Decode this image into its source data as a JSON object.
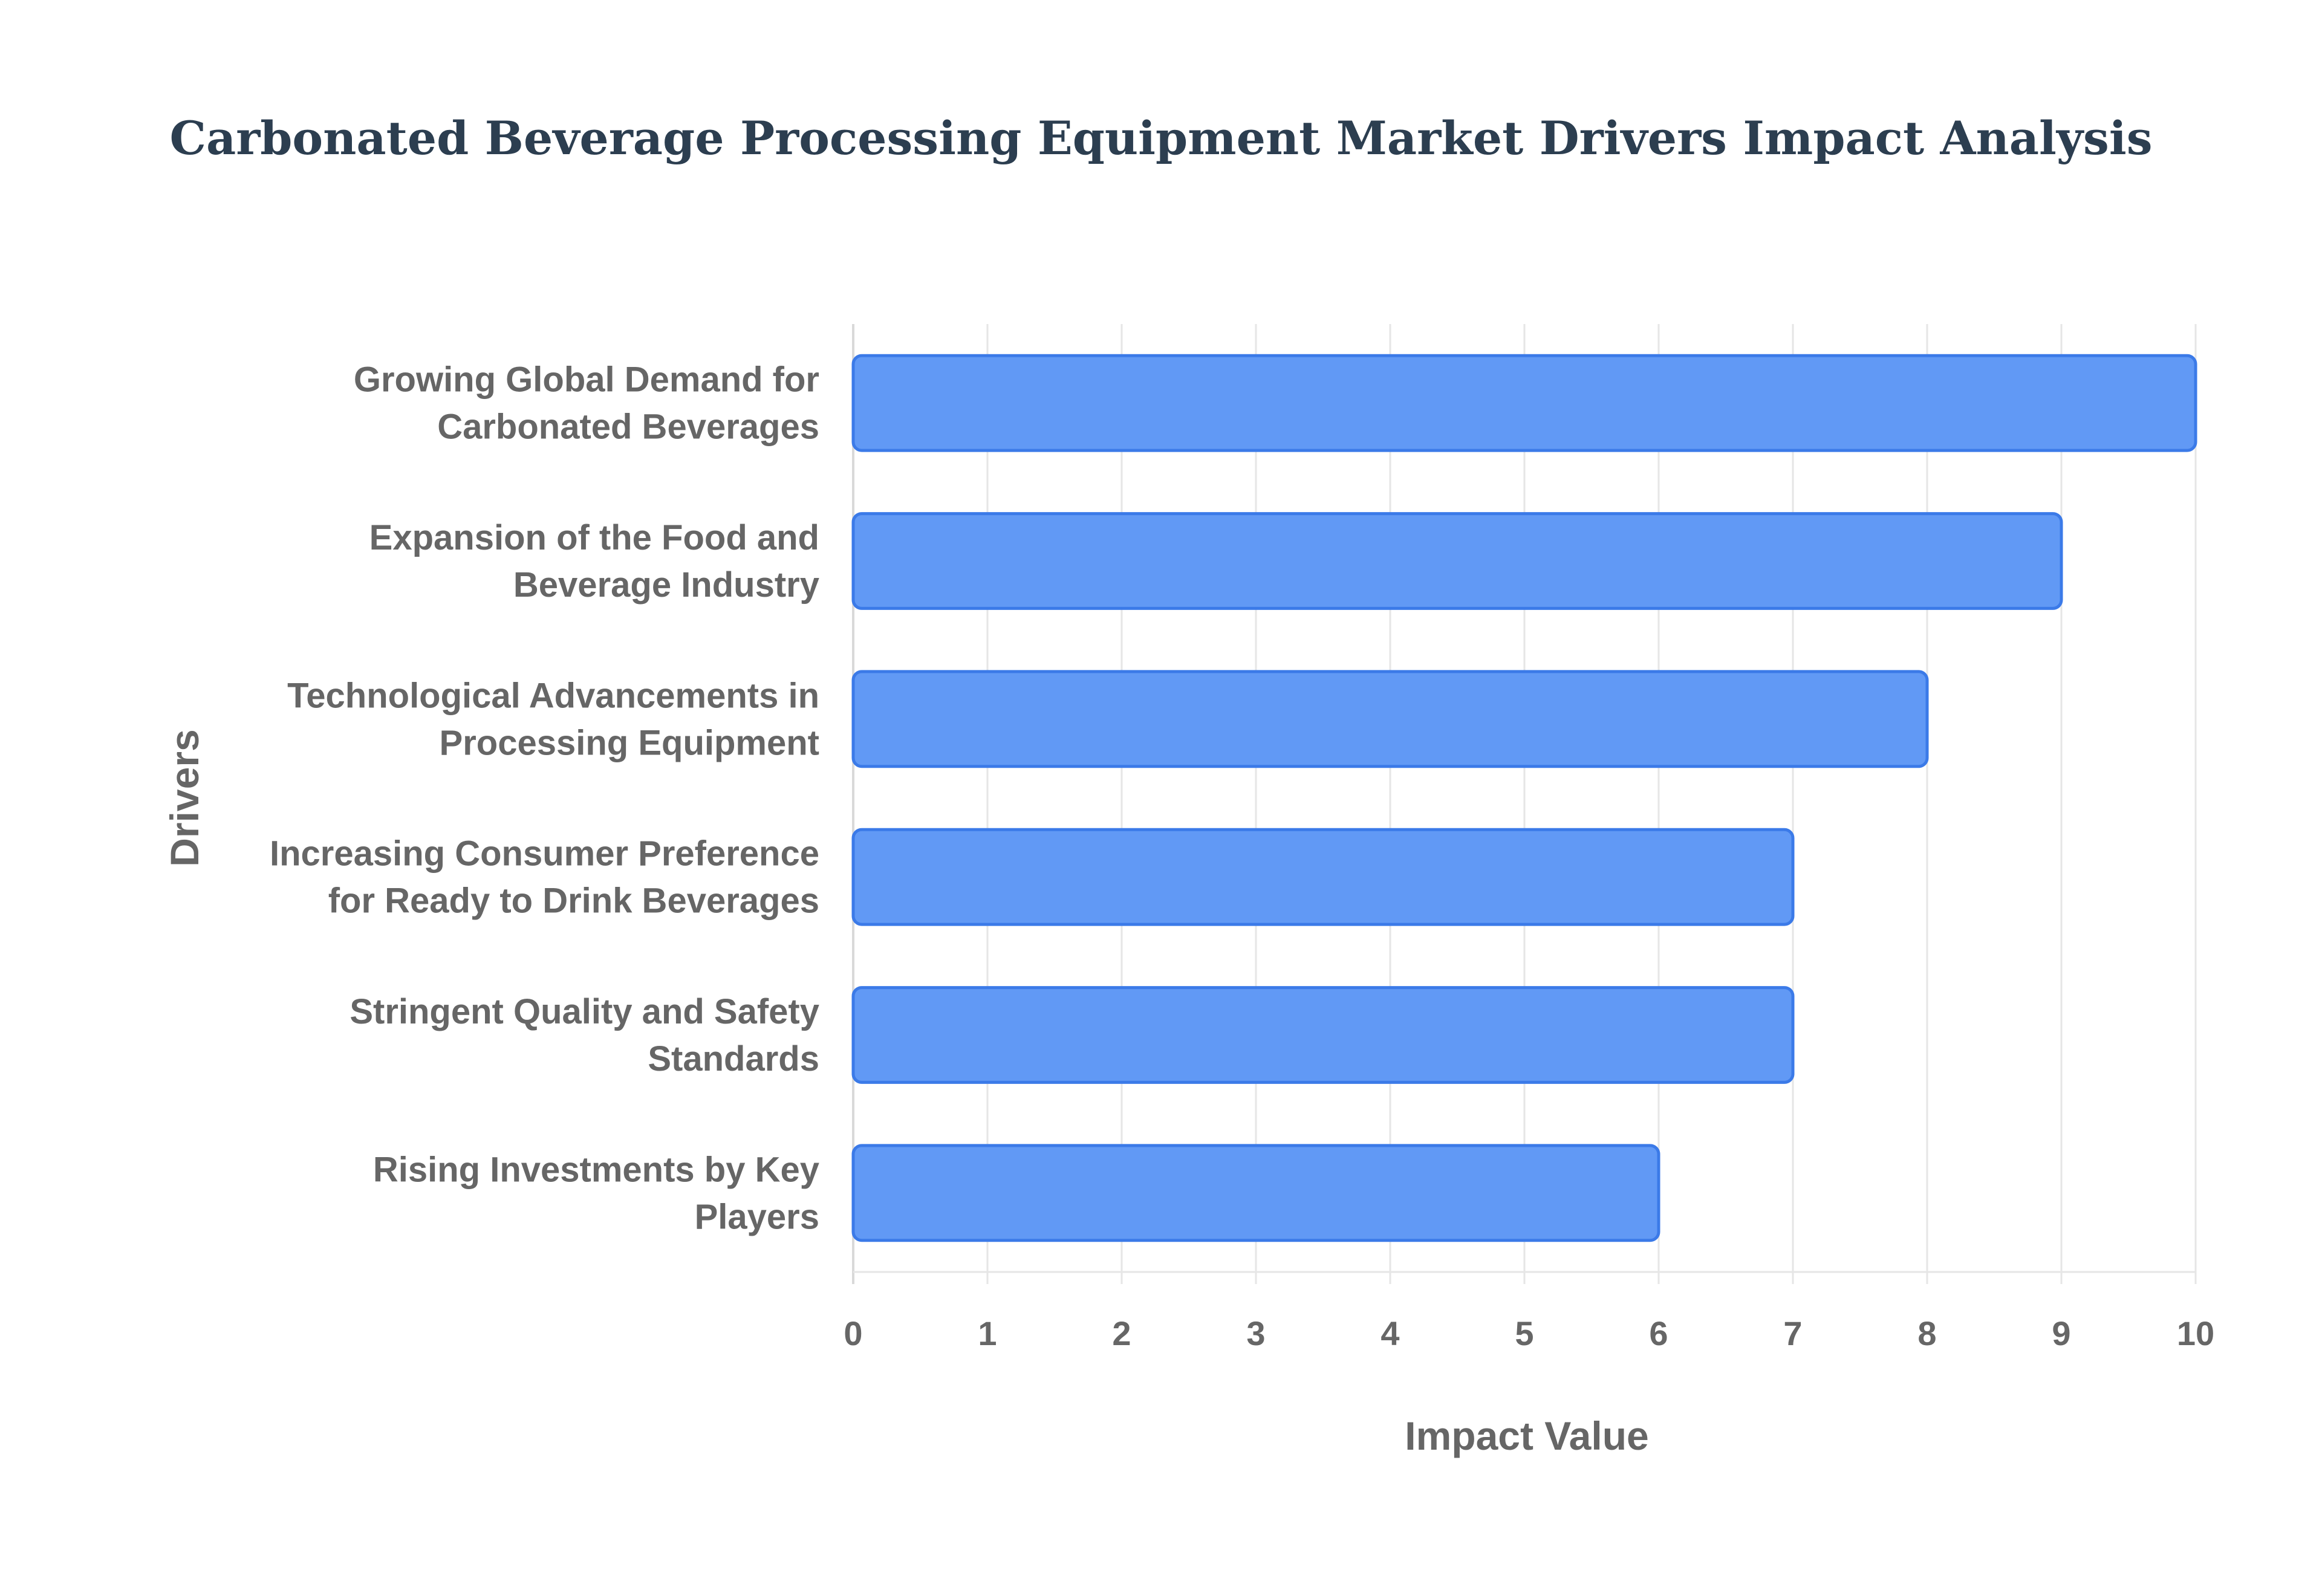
{
  "chart_data": {
    "type": "bar",
    "orientation": "horizontal",
    "title": "Carbonated Beverage Processing Equipment Market Drivers Impact Analysis",
    "xlabel": "Impact Value",
    "ylabel": "Drivers",
    "xlim": [
      0,
      10
    ],
    "x_ticks": [
      "0",
      "1",
      "2",
      "3",
      "4",
      "5",
      "6",
      "7",
      "8",
      "9",
      "10"
    ],
    "grid": true,
    "legend": "none",
    "bar_color": "#6199f5",
    "bar_border_color": "#3b7ae8",
    "categories": [
      [
        "Growing Global Demand for",
        "Carbonated Beverages"
      ],
      [
        "Expansion of the Food and",
        "Beverage Industry"
      ],
      [
        "Technological Advancements in",
        "Processing Equipment"
      ],
      [
        "Increasing Consumer Preference",
        "for Ready to Drink Beverages"
      ],
      [
        "Stringent Quality and Safety",
        "Standards"
      ],
      [
        "Rising Investments by Key",
        "Players"
      ]
    ],
    "values": [
      10,
      9,
      8,
      7,
      7,
      6
    ]
  }
}
